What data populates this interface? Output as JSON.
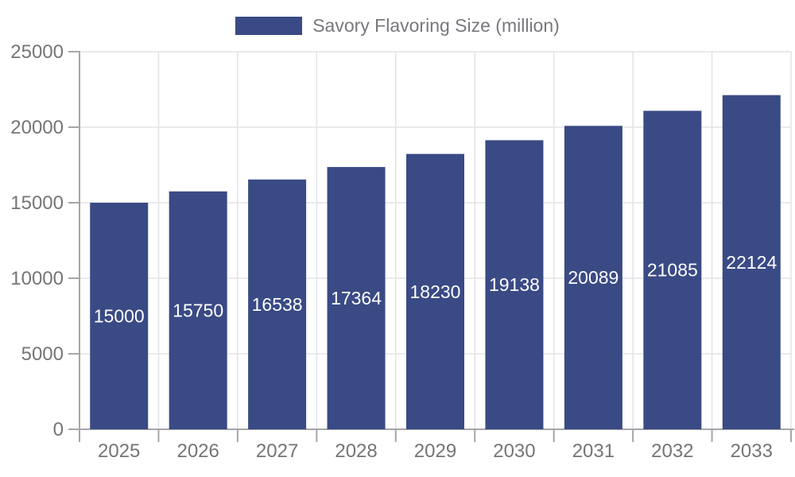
{
  "chart_data": {
    "type": "bar",
    "title": "Savory Flavoring Size (million)",
    "legend_label": "Savory Flavoring Size (million)",
    "legend_position": "top-center",
    "categories": [
      "2025",
      "2026",
      "2027",
      "2028",
      "2029",
      "2030",
      "2031",
      "2032",
      "2033"
    ],
    "values": [
      15000,
      15750,
      16538,
      17364,
      18230,
      19138,
      20089,
      21085,
      22124
    ],
    "xlabel": "",
    "ylabel": "",
    "ylim": [
      0,
      25000
    ],
    "yticks": [
      0,
      5000,
      10000,
      15000,
      20000,
      25000
    ],
    "grid": true,
    "bar_labels_inside_centered": true,
    "colors": {
      "bar": "#3A4A85",
      "bar_label_text": "#FFFFFF",
      "grid_line": "#E4E4E9",
      "axis_line": "#A6A6AB",
      "tick_text": "#757575",
      "legend_text": "#77787D",
      "background": "#FFFFFF"
    }
  }
}
